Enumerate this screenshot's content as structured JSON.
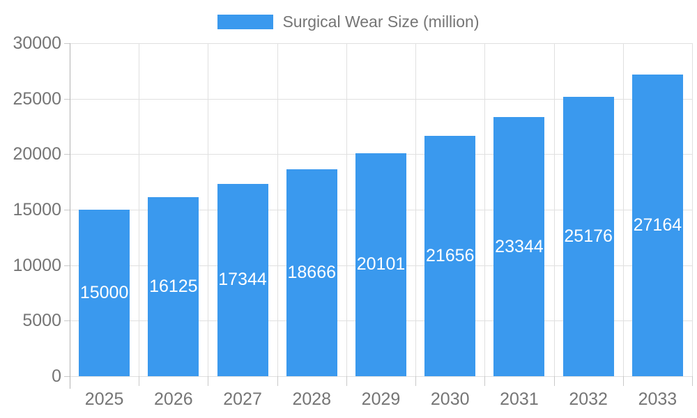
{
  "chart_data": {
    "type": "bar",
    "title": "",
    "legend": {
      "label": "Surgical Wear Size (million)",
      "position": "top-center"
    },
    "categories": [
      "2025",
      "2026",
      "2027",
      "2028",
      "2029",
      "2030",
      "2031",
      "2032",
      "2033"
    ],
    "series": [
      {
        "name": "Surgical Wear Size (million)",
        "values": [
          15000,
          16125,
          17344,
          18666,
          20101,
          21656,
          23344,
          25176,
          27164
        ]
      }
    ],
    "bar_value_labels": [
      "15000",
      "16125",
      "17344",
      "18666",
      "20101",
      "21656",
      "23344",
      "25176",
      "27164"
    ],
    "xlabel": "",
    "ylabel": "",
    "ylim": [
      0,
      30000
    ],
    "ytick_interval": 5000,
    "ytick_labels": [
      "0",
      "5000",
      "10000",
      "15000",
      "20000",
      "25000",
      "30000"
    ],
    "grid": "horizontal and vertical light gridlines, bars drawn over gridlines",
    "value_label_position": "inside bar, vertically centered, white"
  },
  "colors": {
    "bar_fill": "#3A99EE",
    "bar_value_label": "#FFFFFF",
    "axis_text": "#757575",
    "legend_text": "#757575",
    "gridline": "#E0E0E0",
    "axis_line": "#B3B3B3",
    "tick": "#C9C9C9",
    "background": "#FFFFFF"
  }
}
